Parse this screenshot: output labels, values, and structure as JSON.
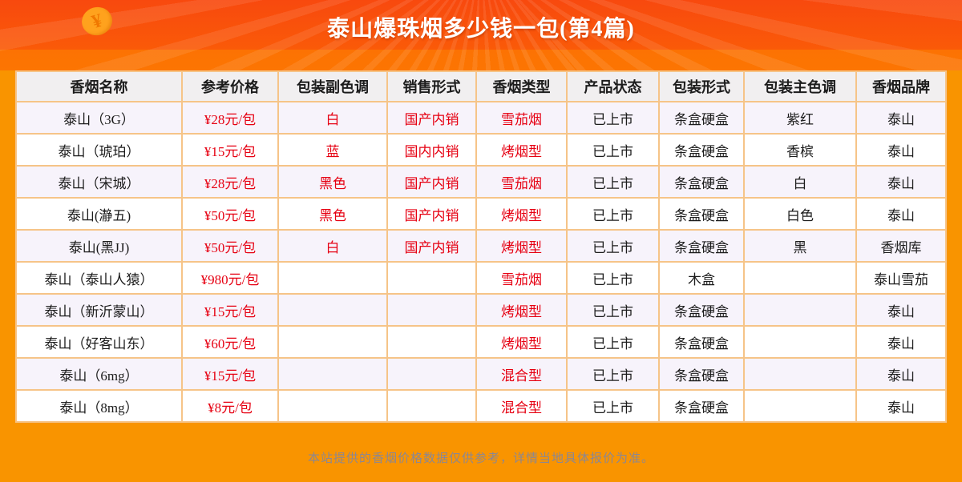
{
  "page": {
    "title": "泰山爆珠烟多少钱一包(第4篇)",
    "coin_symbol": "¥",
    "footer_note": "本站提供的香烟价格数据仅供参考，详情当地具体报价为准。"
  },
  "colors": {
    "banner_top": "#f8490e",
    "banner_bottom": "#fc7203",
    "page_orange": "#f99400",
    "table_border": "#f6c488",
    "header_bg": "#f1eff0",
    "row_stripe": "#f7f3fb",
    "accent_red": "#e60012",
    "coin_fill": "#ffa21d",
    "coin_glyph": "#f07800"
  },
  "chart_data": {
    "type": "table",
    "title": "泰山爆珠烟多少钱一包(第4篇)",
    "columns": [
      "香烟名称",
      "参考价格",
      "包装副色调",
      "销售形式",
      "香烟类型",
      "产品状态",
      "包装形式",
      "包装主色调",
      "香烟品牌"
    ],
    "red_value_columns": [
      1,
      2,
      3,
      4
    ],
    "rows": [
      [
        "泰山（3G）",
        "¥28元/包",
        "白",
        "国产内销",
        "雪茄烟",
        "已上市",
        "条盒硬盒",
        "紫红",
        "泰山"
      ],
      [
        "泰山（琥珀）",
        "¥15元/包",
        "蓝",
        "国内内销",
        "烤烟型",
        "已上市",
        "条盒硬盒",
        "香槟",
        "泰山"
      ],
      [
        "泰山（宋城）",
        "¥28元/包",
        "黑色",
        "国产内销",
        "雪茄烟",
        "已上市",
        "条盒硬盒",
        "白",
        "泰山"
      ],
      [
        "泰山(瀞五)",
        "¥50元/包",
        "黑色",
        "国产内销",
        "烤烟型",
        "已上市",
        "条盒硬盒",
        "白色",
        "泰山"
      ],
      [
        "泰山(黑JJ)",
        "¥50元/包",
        "白",
        "国产内销",
        "烤烟型",
        "已上市",
        "条盒硬盒",
        "黑",
        "香烟库"
      ],
      [
        "泰山（泰山人猿）",
        "¥980元/包",
        "",
        "",
        "雪茄烟",
        "已上市",
        "木盒",
        "",
        "泰山雪茄"
      ],
      [
        "泰山（新沂蒙山）",
        "¥15元/包",
        "",
        "",
        "烤烟型",
        "已上市",
        "条盒硬盒",
        "",
        "泰山"
      ],
      [
        "泰山（好客山东）",
        "¥60元/包",
        "",
        "",
        "烤烟型",
        "已上市",
        "条盒硬盒",
        "",
        "泰山"
      ],
      [
        "泰山（6mg）",
        "¥15元/包",
        "",
        "",
        "混合型",
        "已上市",
        "条盒硬盒",
        "",
        "泰山"
      ],
      [
        "泰山（8mg）",
        "¥8元/包",
        "",
        "",
        "混合型",
        "已上市",
        "条盒硬盒",
        "",
        "泰山"
      ]
    ],
    "footer_note": "本站提供的香烟价格数据仅供参考，详情当地具体报价为准。"
  }
}
